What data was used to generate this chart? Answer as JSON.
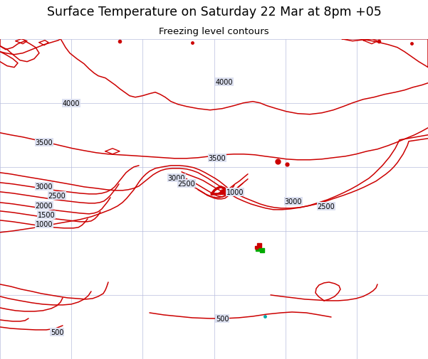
{
  "title": "Surface Temperature on Saturday 22 Mar at 8pm +05",
  "subtitle": "Freezing level contours",
  "bg_color": "#dce0f0",
  "header_bg": "#ffffff",
  "contour_color": "#cc0000",
  "grid_color": "#b8bedd",
  "title_fontsize": 12.5,
  "subtitle_fontsize": 9.5,
  "figsize": [
    6.01,
    5.06
  ],
  "dpi": 100
}
